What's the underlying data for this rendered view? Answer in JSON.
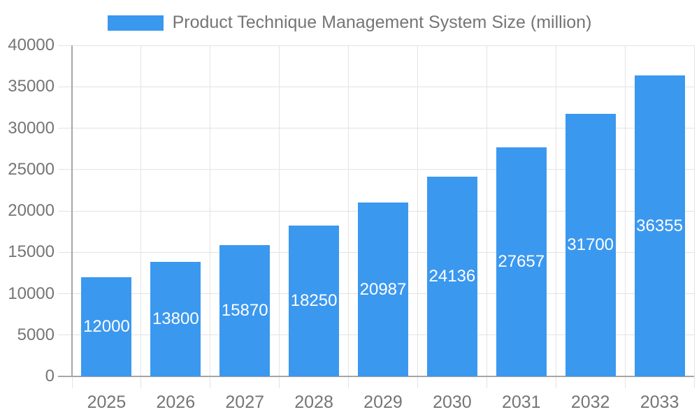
{
  "legend": {
    "label": "Product Technique Management System Size (million)"
  },
  "chart_data": {
    "type": "bar",
    "title": "Product Technique Management System Size (million)",
    "categories": [
      "2025",
      "2026",
      "2027",
      "2028",
      "2029",
      "2030",
      "2031",
      "2032",
      "2033"
    ],
    "values": [
      12000,
      13800,
      15870,
      18250,
      20987,
      24136,
      27657,
      31700,
      36355
    ],
    "series": [
      {
        "name": "Product Technique Management System Size (million)",
        "values": [
          12000,
          13800,
          15870,
          18250,
          20987,
          24136,
          27657,
          31700,
          36355
        ]
      }
    ],
    "xlabel": "",
    "ylabel": "",
    "ylim": [
      0,
      40000
    ],
    "y_ticks": [
      0,
      5000,
      10000,
      15000,
      20000,
      25000,
      30000,
      35000,
      40000
    ],
    "grid": true,
    "legend_position": "top",
    "value_labels": "inside-center",
    "colors": {
      "bar": "#3b98ef",
      "bar_label": "#ffffff",
      "axis_text": "#757575",
      "axis_line": "#a6a6a6",
      "gridline": "#e3e3e3",
      "background": "#ffffff"
    }
  }
}
